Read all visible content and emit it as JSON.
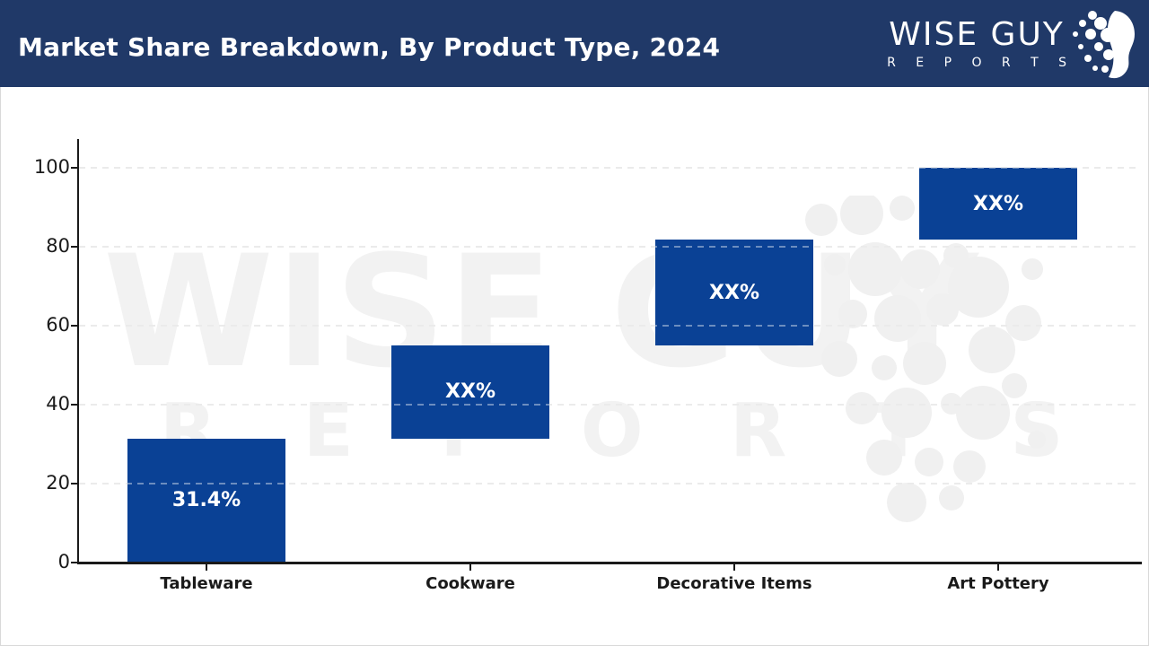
{
  "header": {
    "title": "Market Share Breakdown, By Product Type, 2024",
    "logo": {
      "name_top": "WISE GUY",
      "name_bottom": "R E P O R T S",
      "icon": "dotted-face-profile"
    }
  },
  "watermark": {
    "top": "WISE GUY",
    "bottom": "R E P O R T S"
  },
  "chart_data": {
    "type": "bar",
    "variant": "waterfall",
    "title": "Market Share Breakdown, By Product Type, 2024",
    "categories": [
      "Tableware",
      "Cookware",
      "Decorative Items",
      "Art Pottery"
    ],
    "bars": [
      {
        "category": "Tableware",
        "start": 0,
        "end": 31.4,
        "value_label": "31.4%"
      },
      {
        "category": "Cookware",
        "start": 31.4,
        "end": 55,
        "value_label": "XX%"
      },
      {
        "category": "Decorative Items",
        "start": 55,
        "end": 81.8,
        "value_label": "XX%"
      },
      {
        "category": "Art Pottery",
        "start": 81.8,
        "end": 100,
        "value_label": "XX%"
      }
    ],
    "ylim": [
      0,
      100
    ],
    "yticks": [
      0,
      20,
      40,
      60,
      80,
      100
    ],
    "xlabel": "",
    "ylabel": "",
    "grid": "horizontal-dashed",
    "legend": "none"
  },
  "colors": {
    "header_bg": "#203968",
    "bar_blue": "#0a4195",
    "value_label": "#ffffff",
    "grid_gray": "#dedede",
    "axis_black": "#1a1a1a",
    "watermark_gray": "#f2f2f2",
    "frame_border": "#d9d9d9"
  }
}
